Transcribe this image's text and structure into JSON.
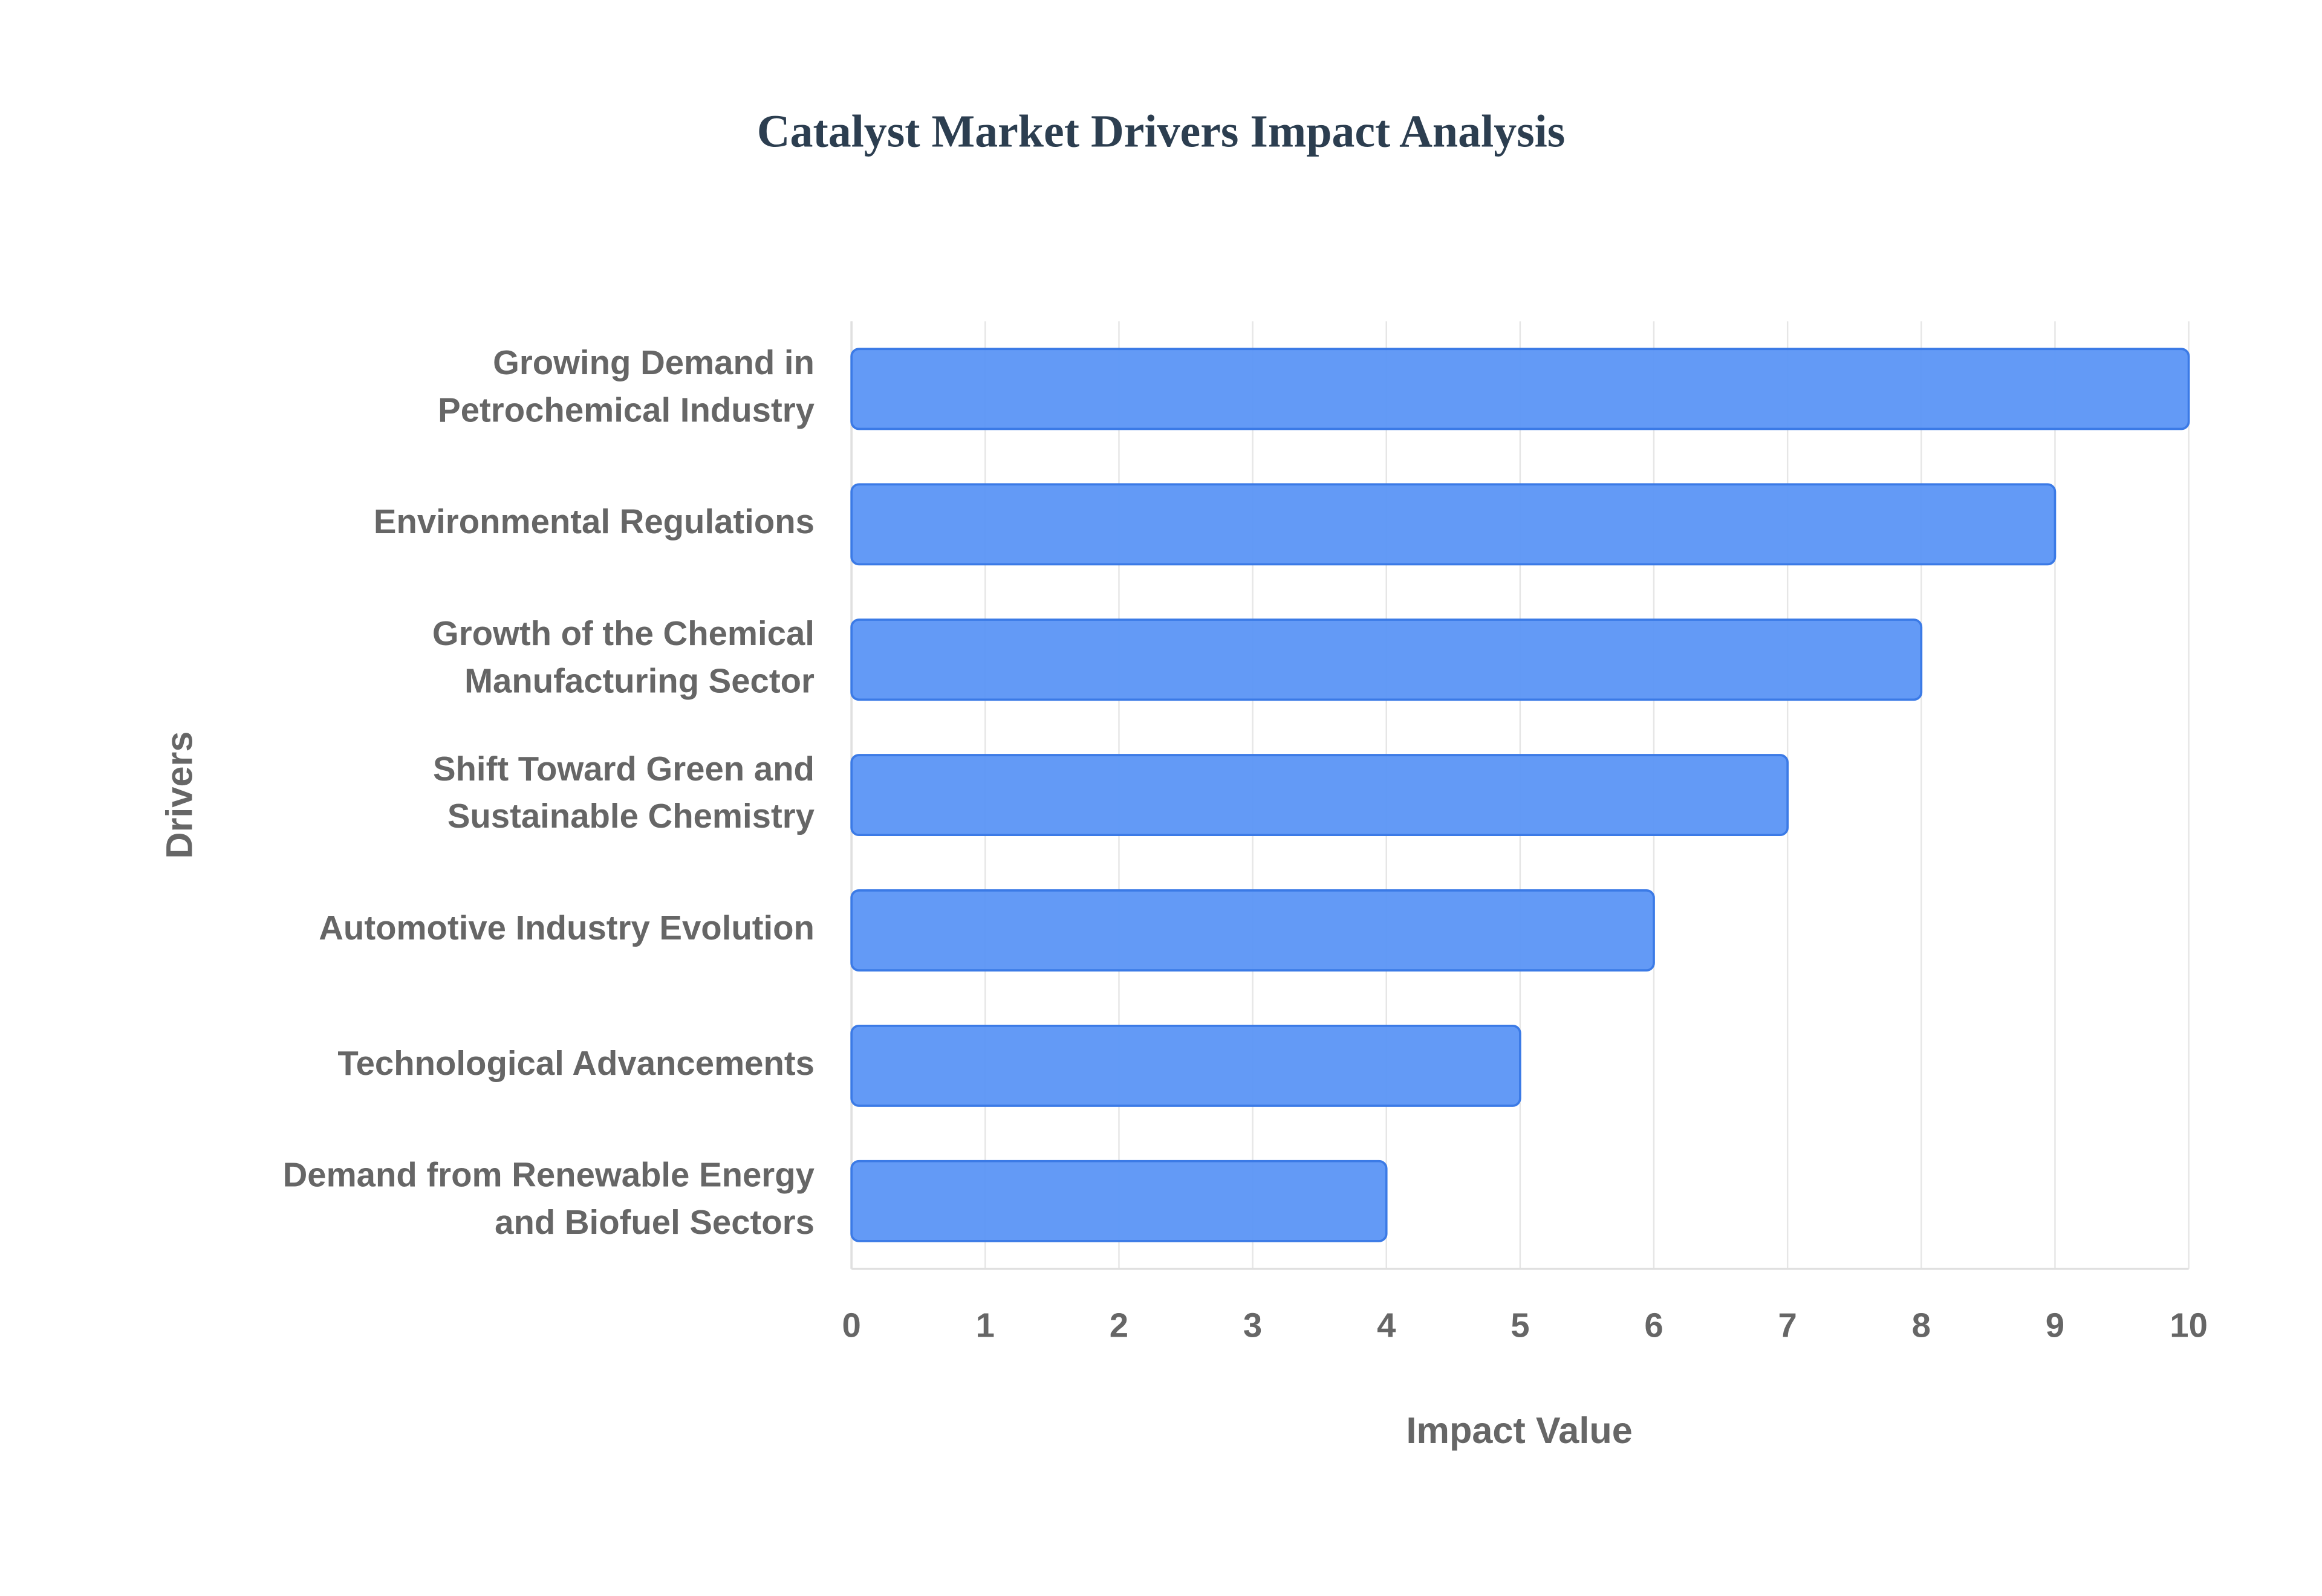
{
  "chart_data": {
    "type": "barh",
    "title": "Catalyst Market Drivers Impact Analysis",
    "x_label": "Impact Value",
    "y_label": "Drivers",
    "categories": [
      [
        "Growing Demand in",
        "Petrochemical Industry"
      ],
      [
        "Environmental Regulations"
      ],
      [
        "Growth of the Chemical",
        "Manufacturing Sector"
      ],
      [
        "Shift Toward Green and",
        "Sustainable Chemistry"
      ],
      [
        "Automotive Industry Evolution"
      ],
      [
        "Technological Advancements"
      ],
      [
        "Demand from Renewable Energy",
        "and Biofuel Sectors"
      ]
    ],
    "values": [
      10,
      9,
      8,
      7,
      6,
      5,
      4
    ],
    "color": "#5b95f5",
    "xlim": [
      0,
      10
    ],
    "xticks": [
      0,
      1,
      2,
      3,
      4,
      5,
      6,
      7,
      8,
      9,
      10
    ],
    "grid": true
  }
}
